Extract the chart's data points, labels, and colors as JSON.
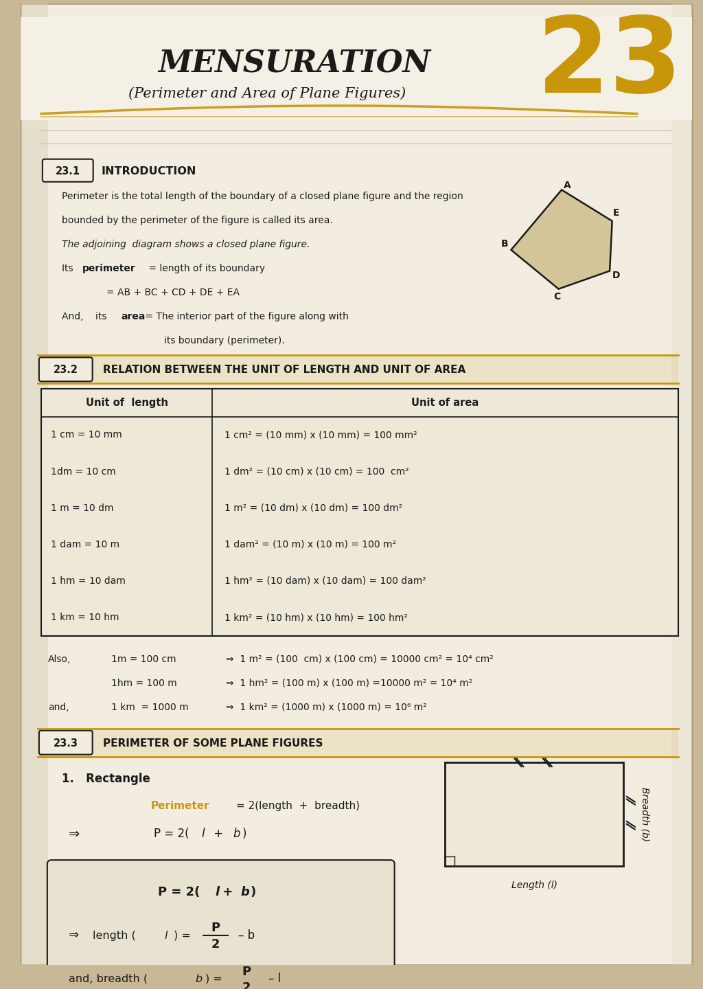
{
  "bg_outer": "#c8b896",
  "bg_page": "#f2ede0",
  "bg_header": "#f5f0e5",
  "bg_table": "#ede8d8",
  "bg_box": "#e8e3d0",
  "gold": "#c8960a",
  "dark": "#1a1a1a",
  "mid": "#444444",
  "title_main": "MENSURATION",
  "title_sub": "(Perimeter and Area of Plane Figures)",
  "chapter_num": "23",
  "sec1_num": "23.1",
  "sec1_title": "INTRODUCTION",
  "sec2_num": "23.2",
  "sec2_title": "RELATION BETWEEN THE UNIT OF LENGTH AND UNIT OF AREA",
  "sec3_num": "23.3",
  "sec3_title": "PERIMETER OF SOME PLANE FIGURES",
  "col1_header": "Unit of  length",
  "col2_header": "Unit of area",
  "col1_rows": [
    "1 cm = 10 mm",
    "1dm = 10 cm",
    "1 m = 10 dm",
    "1 dam = 10 m",
    "1 hm = 10 dam",
    "1 km = 10 hm"
  ],
  "col2_rows": [
    "1 cm² = (10 mm) x (10 mm) = 100 mm²",
    "1 dm² = (10 cm) x (10 cm) = 100  cm²",
    "1 m² = (10 dm) x (10 dm) = 100 dm²",
    "1 dam² = (10 m) x (10 m) = 100 m²",
    "1 hm² = (10 dam) x (10 dam) = 100 dam²",
    "1 km² = (10 hm) x (10 hm) = 100 hm²"
  ],
  "also_lines": [
    [
      "Also,",
      "  1m = 100 cm",
      "  ⇒  1 m² = (100  cm) x (100 cm) = 10000 cm² = 10⁴ cm²"
    ],
    [
      "",
      "  1hm = 100 m",
      "  ⇒  1 hm² = (100 m) x (100 m) =10000 m² = 10⁴ m²"
    ],
    [
      "and,",
      "  1 km  = 1000 m",
      "  ⇒  1 km² = (1000 m) x (1000 m) = 10⁶ m²"
    ]
  ],
  "pent_color": "#d4c49a",
  "rect_color": "#ede8d8"
}
